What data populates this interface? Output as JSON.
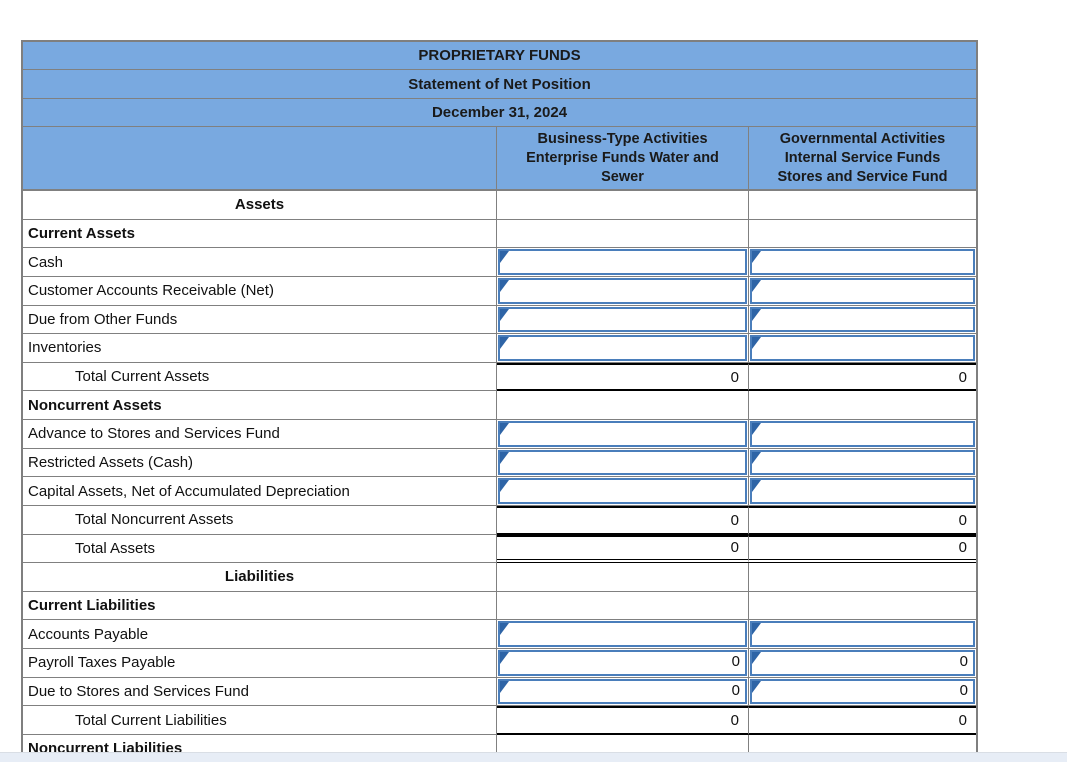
{
  "header": {
    "title": "PROPRIETARY FUNDS",
    "subtitle": "Statement of Net Position",
    "date": "December 31, 2024",
    "col1_lines": [
      "Business-Type Activities",
      "Enterprise Funds Water and",
      "Sewer"
    ],
    "col2_lines": [
      "Governmental Activities",
      "Internal Service Funds",
      "Stores and Service Fund"
    ]
  },
  "rows": [
    {
      "label": "Assets",
      "type": "section-center"
    },
    {
      "label": "Current Assets",
      "type": "section-left"
    },
    {
      "label": "Cash",
      "type": "input",
      "v1": "",
      "v2": ""
    },
    {
      "label": "Customer Accounts Receivable (Net)",
      "type": "input",
      "v1": "",
      "v2": ""
    },
    {
      "label": "Due from Other Funds",
      "type": "input",
      "v1": "",
      "v2": ""
    },
    {
      "label": "Inventories",
      "type": "input",
      "v1": "",
      "v2": ""
    },
    {
      "label": "Total Current Assets",
      "type": "total",
      "v1": "0",
      "v2": "0"
    },
    {
      "label": "Noncurrent Assets",
      "type": "section-left"
    },
    {
      "label": "Advance to Stores and Services Fund",
      "type": "input",
      "v1": "",
      "v2": ""
    },
    {
      "label": "Restricted Assets (Cash)",
      "type": "input",
      "v1": "",
      "v2": ""
    },
    {
      "label": "Capital Assets, Net of Accumulated Depreciation",
      "type": "input",
      "v1": "",
      "v2": ""
    },
    {
      "label": "Total Noncurrent Assets",
      "type": "total",
      "v1": "0",
      "v2": "0"
    },
    {
      "label": "Total Assets",
      "type": "total-double",
      "v1": "0",
      "v2": "0"
    },
    {
      "label": "Liabilities",
      "type": "section-center"
    },
    {
      "label": "Current Liabilities",
      "type": "section-left"
    },
    {
      "label": "Accounts Payable",
      "type": "input",
      "v1": "",
      "v2": ""
    },
    {
      "label": "Payroll Taxes Payable",
      "type": "input",
      "v1": "0",
      "v2": "0"
    },
    {
      "label": "Due to Stores and Services Fund",
      "type": "input",
      "v1": "0",
      "v2": "0"
    },
    {
      "label": "Total Current Liabilities",
      "type": "total",
      "v1": "0",
      "v2": "0"
    },
    {
      "label": "Noncurrent Liabilities",
      "type": "section-left"
    }
  ],
  "colors": {
    "header_blue": "#79a9e0",
    "grid_gray": "#808080",
    "input_border_blue": "#4a7ebb",
    "flag_blue": "#2e64a6",
    "total_border_black": "#000000"
  }
}
